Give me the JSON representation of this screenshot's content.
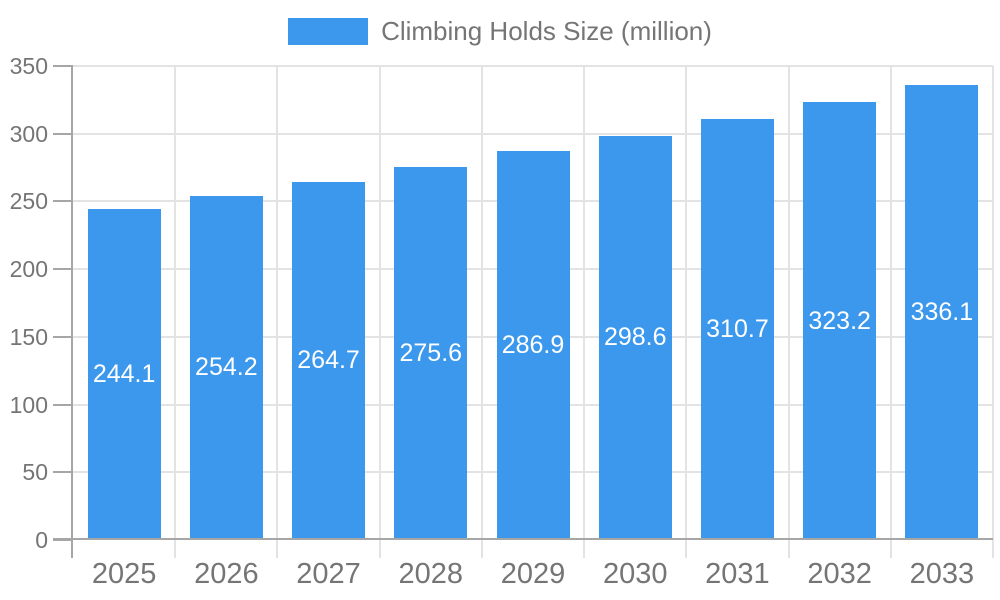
{
  "chart_data": {
    "type": "bar",
    "title": "Climbing Holds Size (million)",
    "legend_position": "top",
    "categories": [
      "2025",
      "2026",
      "2027",
      "2028",
      "2029",
      "2030",
      "2031",
      "2032",
      "2033"
    ],
    "series": [
      {
        "name": "Climbing Holds Size (million)",
        "values": [
          244.1,
          254.2,
          264.7,
          275.6,
          286.9,
          298.6,
          310.7,
          323.2,
          336.1
        ]
      }
    ],
    "data_labels": [
      "244.1",
      "254.2",
      "264.7",
      "275.6",
      "286.9",
      "298.6",
      "310.7",
      "323.2",
      "336.1"
    ],
    "xlabel": "",
    "ylabel": "",
    "ylim": [
      0,
      350
    ],
    "yticks": [
      0,
      50,
      100,
      150,
      200,
      250,
      300,
      350
    ],
    "grid": true,
    "colors": {
      "bar": "#3b98ec",
      "value_label": "#ffffff",
      "axis": "#a6a6a6",
      "gridline": "#e3e3e3",
      "text": "#757575",
      "background": "#ffffff"
    }
  }
}
